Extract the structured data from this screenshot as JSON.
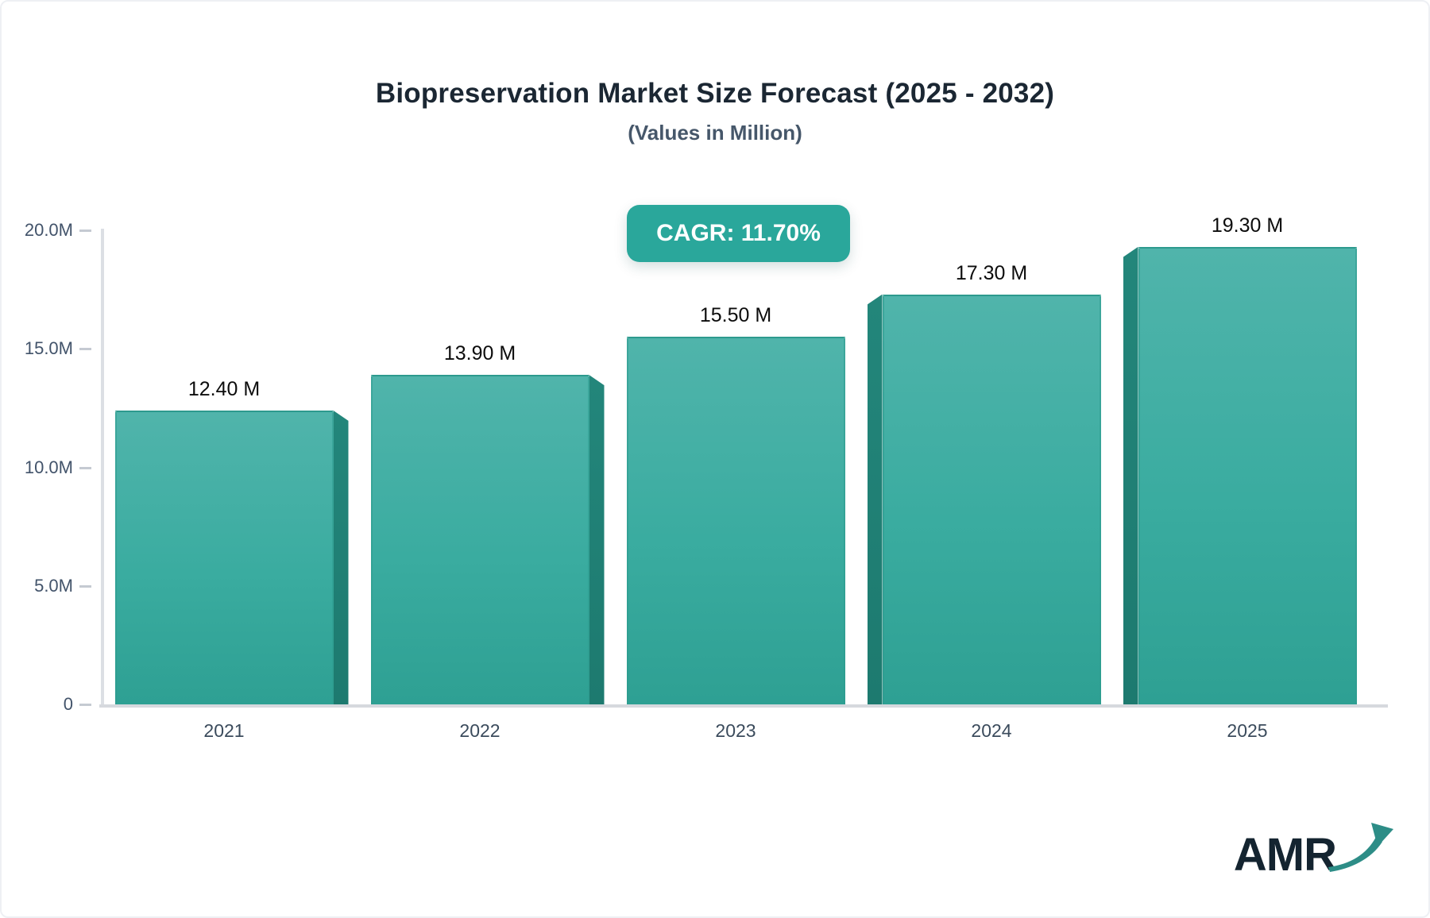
{
  "page": {
    "title": "Biopreservation Market Size Forecast (2025 - 2032)",
    "subtitle": "(Values in Million)"
  },
  "badge": {
    "label": "CAGR: 11.70%"
  },
  "logo": {
    "text": "AMR"
  },
  "chart_data": {
    "type": "bar",
    "title": "Biopreservation Market Size Forecast (2025 - 2032)",
    "subtitle": "(Values in Million)",
    "categories": [
      "2021",
      "2022",
      "2023",
      "2024",
      "2025"
    ],
    "values": [
      12.4,
      13.9,
      15.5,
      17.3,
      19.3
    ],
    "data_labels": [
      "12.40 M",
      "13.90 M",
      "15.50 M",
      "17.30 M",
      "19.30 M"
    ],
    "series_name": "Market Size (Million)",
    "xlabel": "",
    "ylabel": "",
    "ylim": [
      0,
      20
    ],
    "yticks": [
      "20.0M",
      "15.0M",
      "10.0M",
      "5.0M",
      "0"
    ],
    "annotation": "CAGR: 11.70%",
    "grid": false,
    "legend": "none",
    "colors": {
      "bar_face_top": "#50b4ab",
      "bar_face_bottom": "#2ea093",
      "bar_side": "#1f7e73",
      "badge_bg": "#2aa79b",
      "axis_line": "#d6d9de",
      "tick_text": "#42536a",
      "value_text": "#0c0c0c",
      "title_text": "#1b2733",
      "logo_text": "#142430",
      "logo_arrow": "#2d8d87"
    }
  }
}
